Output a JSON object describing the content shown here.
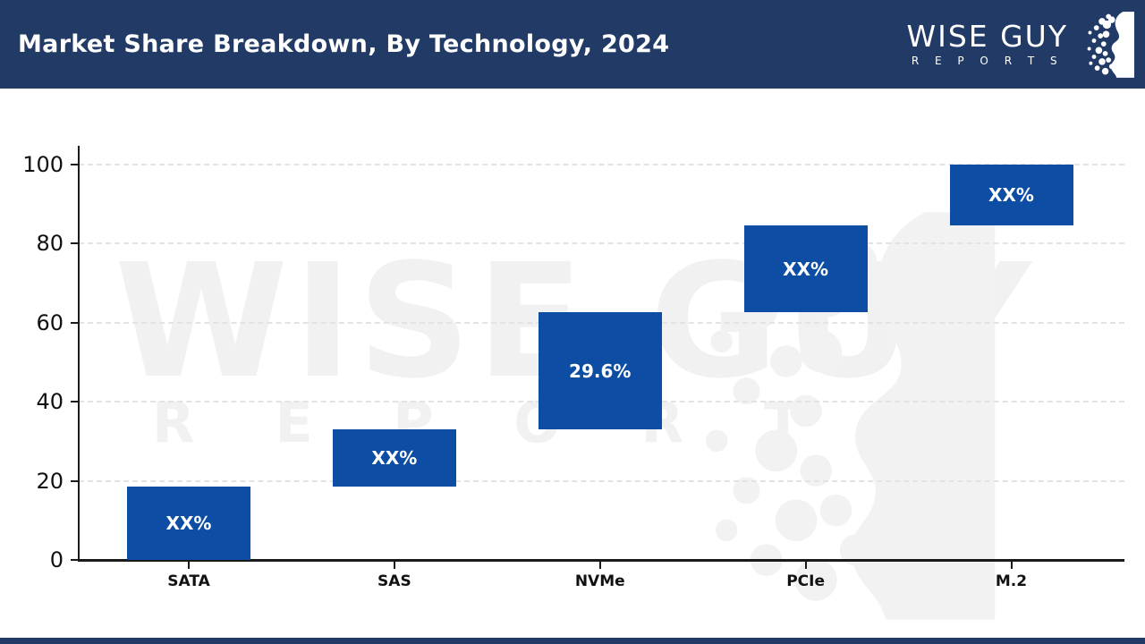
{
  "header": {
    "title": "Market Share Breakdown, By Technology, 2024",
    "logo": {
      "name": "WISE GUY",
      "subtitle": "R E P O R T S"
    }
  },
  "watermark": {
    "line1": "WISE GUY",
    "line2": "R E P O R T S"
  },
  "footer": {},
  "colors": {
    "header_bg": "#213a66",
    "footer_bg": "#213a66",
    "bar": "#0d4da3",
    "grid": "#e3e3e3",
    "axis": "#1a1a1a",
    "tick_label": "#111111",
    "bar_label": "#ffffff",
    "watermark": "#f1f1f1"
  },
  "chart_data": {
    "type": "bar",
    "subtype": "waterfall-floating",
    "title": "Market Share Breakdown, By Technology, 2024",
    "categories": [
      "SATA",
      "SAS",
      "NVMe",
      "PCIe",
      "M.2"
    ],
    "segments": [
      {
        "category": "SATA",
        "start": 0,
        "end": 18.5,
        "label": "XX%"
      },
      {
        "category": "SAS",
        "start": 18.5,
        "end": 33,
        "label": "XX%"
      },
      {
        "category": "NVMe",
        "start": 33,
        "end": 62.6,
        "label": "29.6%"
      },
      {
        "category": "PCIe",
        "start": 62.6,
        "end": 84.6,
        "label": "XX%"
      },
      {
        "category": "M.2",
        "start": 84.6,
        "end": 100,
        "label": "XX%"
      }
    ],
    "yticks": [
      0,
      20,
      40,
      60,
      80,
      100
    ],
    "ylim": [
      0,
      105
    ],
    "xlabel": "",
    "ylabel": "",
    "grid": "dashed-horizontal",
    "legend": "none"
  }
}
